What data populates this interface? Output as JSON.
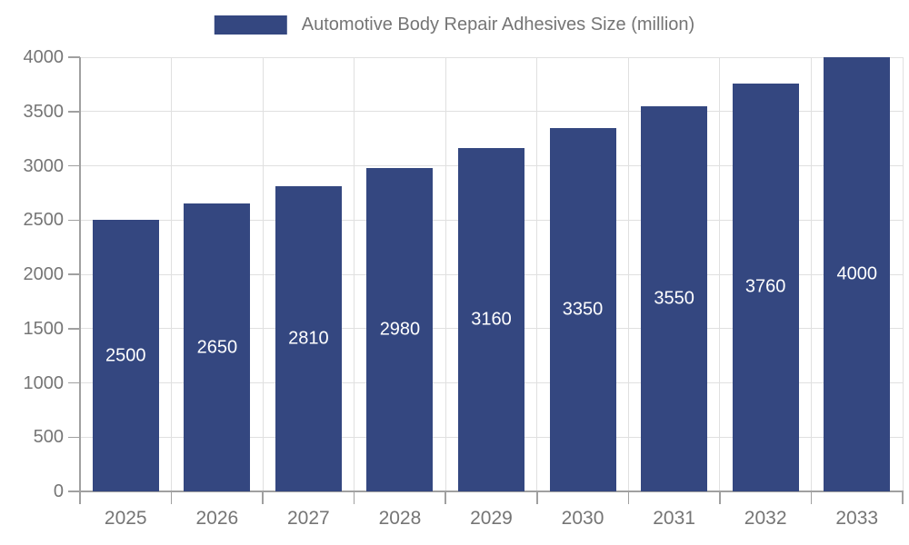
{
  "chart_data": {
    "type": "bar",
    "title": "Automotive Body Repair Adhesives Size (million)",
    "series_name": "Automotive Body Repair Adhesives Size (million)",
    "categories": [
      "2025",
      "2026",
      "2027",
      "2028",
      "2029",
      "2030",
      "2031",
      "2032",
      "2033"
    ],
    "values": [
      2500,
      2650,
      2810,
      2980,
      3160,
      3350,
      3550,
      3760,
      4000
    ],
    "value_labels": [
      "2500",
      "2650",
      "2810",
      "2980",
      "3160",
      "3350",
      "3550",
      "3760",
      "4000"
    ],
    "ylim": [
      0,
      4000
    ],
    "ytick_step": 500,
    "ytick_labels": [
      "0",
      "500",
      "1000",
      "1500",
      "2000",
      "2500",
      "3000",
      "3500",
      "4000"
    ],
    "grid": true,
    "legend_position": "top",
    "bar_color": "#344780",
    "value_label_color": "#ffffff",
    "axis_text_color": "#757575",
    "grid_color": "#e0e0e0",
    "axis_line_color": "#a0a0a0",
    "background_color": "#ffffff"
  }
}
